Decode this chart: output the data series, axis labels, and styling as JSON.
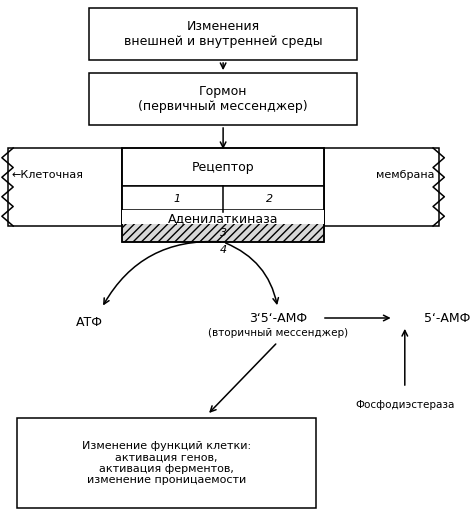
{
  "bg_color": "#ffffff",
  "text_color": "#000000",
  "edge_color": "#000000",
  "box1_text": "Изменения\nвнешней и внутренней среды",
  "box2_text": "Гормон\n(первичный мессенджер)",
  "receptor_text": "Рецептор",
  "adenyl_text": "Аденилаткиназа",
  "label1": "1",
  "label2": "2",
  "label3": "3",
  "label4": "4",
  "mem_left": "←Клеточная",
  "mem_right": "мембрана",
  "atf": "АТФ",
  "camp": "3‘5‘-АМФ",
  "camp_sub": "(вторичный мессенджер)",
  "amp": "5‘-АМФ",
  "phospho": "Фосфодиэстераза",
  "box4_text": "Изменение функций клетки:\nактивация генов,\nактивация ферментов,\nизменение проницаемости",
  "fs": 9,
  "fss": 8
}
